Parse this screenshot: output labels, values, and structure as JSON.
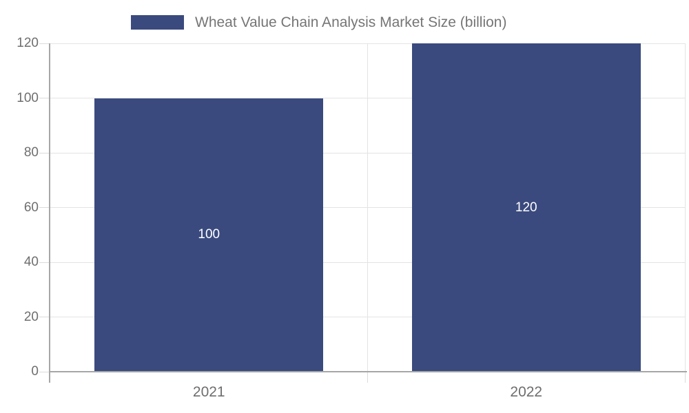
{
  "chart_data": {
    "type": "bar",
    "title": "Wheat Value Chain Analysis Market Size (billion)",
    "categories": [
      "2021",
      "2022"
    ],
    "series": [
      {
        "name": "Wheat Value Chain Analysis Market Size (billion)",
        "values": [
          100,
          120
        ]
      }
    ],
    "data_labels": [
      "100",
      "120"
    ],
    "xlabel": "",
    "ylabel": "",
    "ylim": [
      0,
      120
    ],
    "yticks": [
      0,
      20,
      40,
      60,
      80,
      100,
      120
    ],
    "grid": true,
    "legend_position": "top-center",
    "colors": {
      "bar": "#3A4A7E",
      "grid": "#E3E3E3",
      "axis": "#A6A6A6",
      "tick": "#DBDBDB",
      "axis_label": "#6E6E6E",
      "legend_label": "#757575",
      "data_label": "#FFFFFF",
      "background": "#FFFFFF"
    }
  },
  "legend": {
    "label": "Wheat Value Chain Analysis Market Size (billion)"
  }
}
